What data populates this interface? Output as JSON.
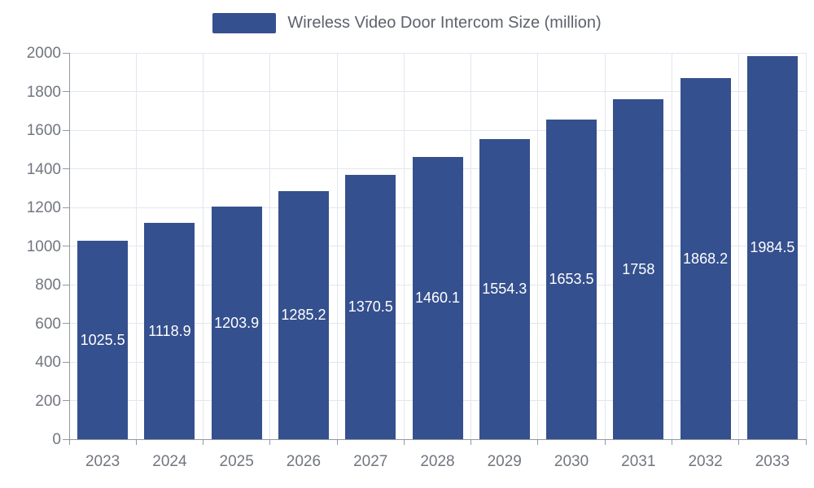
{
  "chart_data": {
    "type": "bar",
    "title": "Wireless Video Door Intercom Size (million)",
    "categories": [
      "2023",
      "2024",
      "2025",
      "2026",
      "2027",
      "2028",
      "2029",
      "2030",
      "2031",
      "2032",
      "2033"
    ],
    "values": [
      1025.5,
      1118.9,
      1203.9,
      1285.2,
      1370.5,
      1460.1,
      1554.3,
      1653.5,
      1758,
      1868.2,
      1984.5
    ],
    "series_name": "Wireless Video Door Intercom Size (million)",
    "xlabel": "",
    "ylabel": "",
    "ylim": [
      0,
      2000
    ],
    "ytick_step": 200,
    "ytick_labels": [
      "0",
      "200",
      "400",
      "600",
      "800",
      "1000",
      "1200",
      "1400",
      "1600",
      "1800",
      "2000"
    ],
    "bar_color": "#35508e",
    "value_label_color": "#ffffff",
    "grid": true,
    "legend_position": "top-center"
  }
}
